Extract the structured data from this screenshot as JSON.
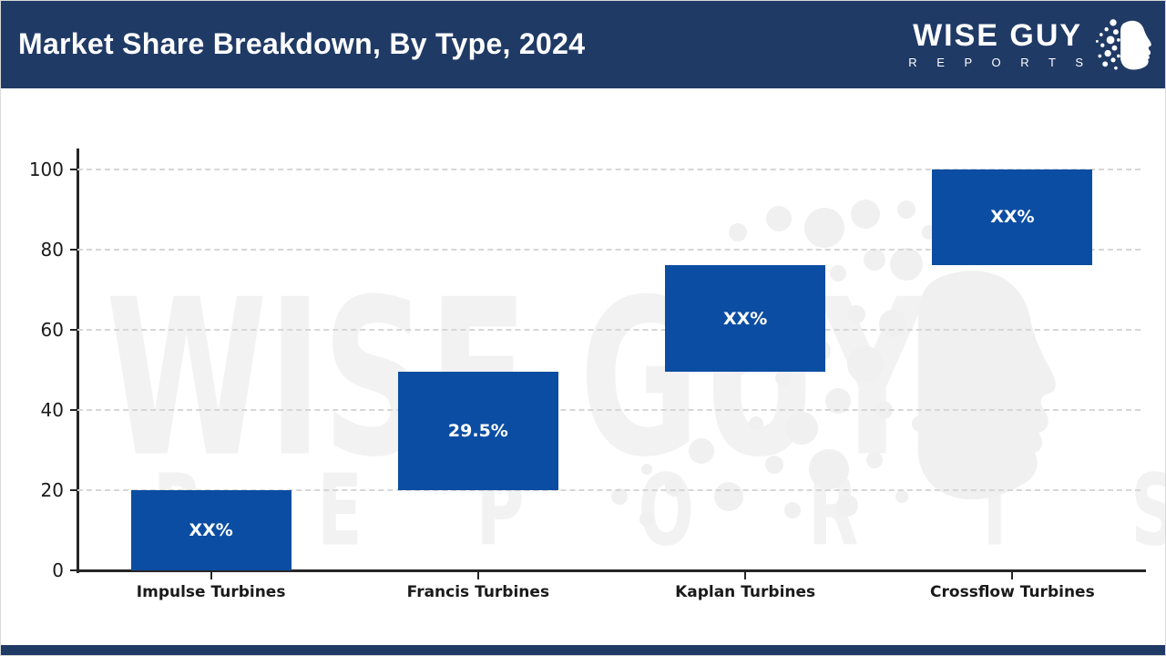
{
  "header": {
    "title": "Market Share Breakdown, By Type, 2024",
    "logo_line1": "WISE GUY",
    "logo_line2": "R E P O R T S"
  },
  "watermark": {
    "line1": "WISE GUY",
    "line2": "R E P O R T S"
  },
  "chart_data": {
    "type": "bar",
    "subtype": "waterfall",
    "title": "Market Share Breakdown, By Type, 2024",
    "categories": [
      "Impulse Turbines",
      "Francis Turbines",
      "Kaplan Turbines",
      "Crossflow Turbines"
    ],
    "bars": [
      {
        "category": "Impulse Turbines",
        "base": 0,
        "top": 20,
        "label": "XX%"
      },
      {
        "category": "Francis Turbines",
        "base": 20,
        "top": 49.5,
        "label": "29.5%",
        "value": 29.5
      },
      {
        "category": "Kaplan Turbines",
        "base": 49.5,
        "top": 76,
        "label": "XX%"
      },
      {
        "category": "Crossflow Turbines",
        "base": 76,
        "top": 100,
        "label": "XX%"
      }
    ],
    "yticks": [
      0,
      20,
      40,
      60,
      80,
      100
    ],
    "ylim": [
      0,
      105
    ],
    "xlabel": "",
    "ylabel": "",
    "grid": "horizontal-dashed",
    "legend": "none"
  },
  "colors": {
    "header_bg": "#203a66",
    "footer_bg": "#203a66",
    "bar": "#0b4da2",
    "axis": "#262626",
    "grid": "#d6d6d6",
    "tick_text": "#1a1a1a",
    "watermark": "#f2f2f2"
  }
}
